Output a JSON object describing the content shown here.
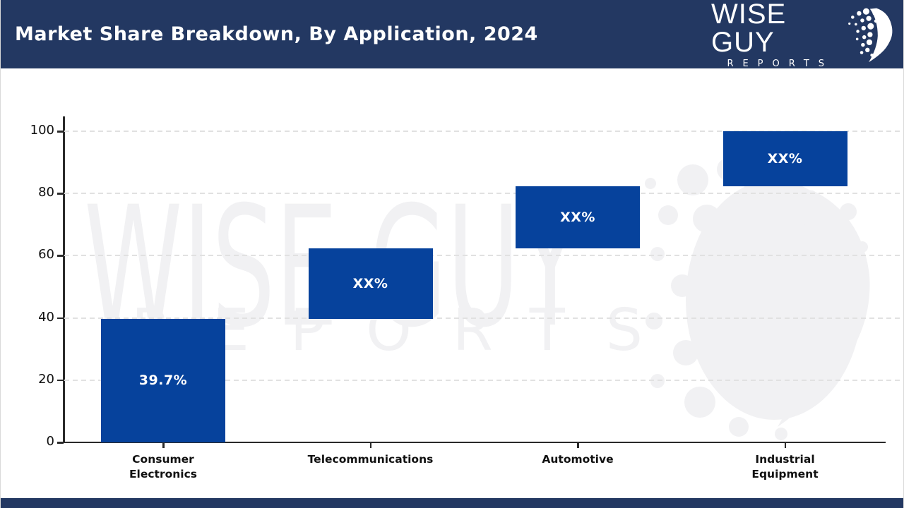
{
  "header": {
    "title": "Market Share Breakdown, By Application, 2024",
    "logo": {
      "line1": "WISE GUY",
      "line2": "REPORTS"
    }
  },
  "watermark": {
    "line1": "WISE GUY",
    "line2": "REPORTS"
  },
  "colors": {
    "header_bar": "#233862",
    "footer_bar": "#233862",
    "bar_fill": "#06429c",
    "bar_label_text": "#ffffff",
    "axis": "#2a2a2a",
    "gridline": "#e1e1e1"
  },
  "chart_data": {
    "type": "bar",
    "subtype": "waterfall",
    "title": "Market Share Breakdown, By Application, 2024",
    "xlabel": "",
    "ylabel": "",
    "ylim": [
      0,
      100
    ],
    "yticks": [
      0,
      20,
      40,
      60,
      80,
      100
    ],
    "grid": "horizontal-dashed",
    "legend": "none",
    "categories": [
      "Consumer\nElectronics",
      "Telecommunications",
      "Automotive",
      "Industrial\nEquipment"
    ],
    "segments": [
      {
        "category": "Consumer Electronics",
        "start": 0,
        "end": 39.7,
        "label": "39.7%"
      },
      {
        "category": "Telecommunications",
        "start": 39.7,
        "end": 62.4,
        "label": "XX%"
      },
      {
        "category": "Automotive",
        "start": 62.4,
        "end": 82.2,
        "label": "XX%"
      },
      {
        "category": "Industrial Equipment",
        "start": 82.2,
        "end": 100,
        "label": "XX%"
      }
    ]
  }
}
